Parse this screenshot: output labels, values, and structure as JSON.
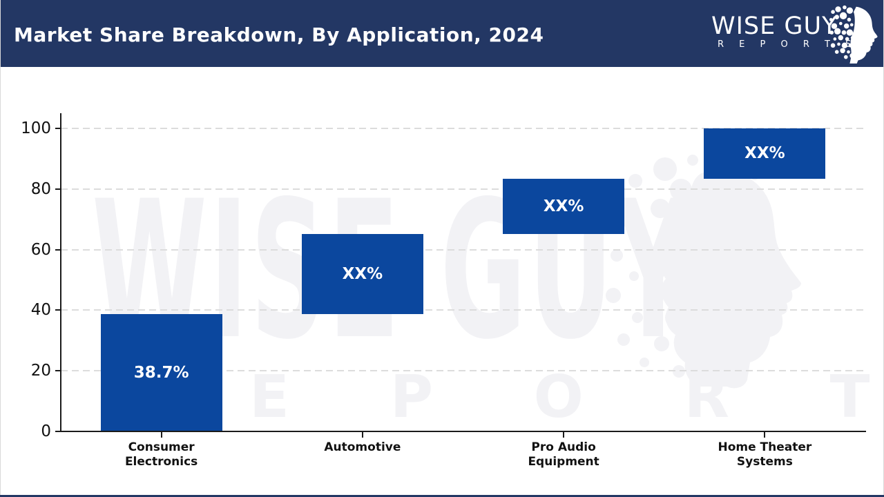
{
  "header": {
    "title": "Market Share Breakdown, By Application, 2024",
    "logo": {
      "line1": "WISE GUY",
      "line2": "R E P O R T S"
    }
  },
  "watermark": {
    "line1": "WISE GUY",
    "line2": "R E P O R T S"
  },
  "colors": {
    "header_bg": "#233764",
    "bar_fill": "#0b479e",
    "grid_line": "#dcdcdc",
    "axis_line": "#1a1a1a",
    "watermark": "#f2f2f5",
    "bar_label_text": "#ffffff"
  },
  "chart_data": {
    "type": "bar",
    "subtype": "floating-segment-waterfall",
    "title": "Market Share Breakdown, By Application, 2024",
    "xlabel": "",
    "ylabel": "",
    "ylim": [
      0,
      100
    ],
    "yticks": [
      0,
      20,
      40,
      60,
      80,
      100
    ],
    "grid": "horizontal-dashed",
    "legend": null,
    "categories": [
      "Consumer\nElectronics",
      "Automotive",
      "Pro Audio\nEquipment",
      "Home Theater\nSystems"
    ],
    "segments": [
      {
        "category": "Consumer Electronics",
        "start": 0,
        "end": 38.7,
        "label": "38.7%"
      },
      {
        "category": "Automotive",
        "start": 38.7,
        "end": 65.1,
        "label": "XX%"
      },
      {
        "category": "Pro Audio Equipment",
        "start": 65.1,
        "end": 83.4,
        "label": "XX%"
      },
      {
        "category": "Home Theater Systems",
        "start": 83.4,
        "end": 100,
        "label": "XX%"
      }
    ]
  }
}
